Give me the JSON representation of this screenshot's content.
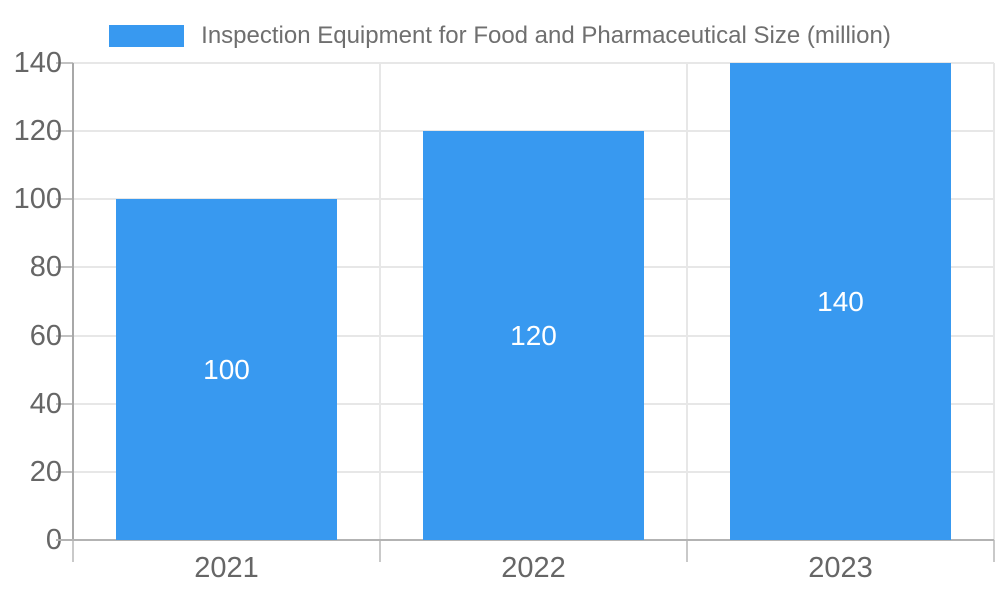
{
  "chart_data": {
    "type": "bar",
    "title": "Inspection Equipment for Food and Pharmaceutical Size (million)",
    "categories": [
      "2021",
      "2022",
      "2023"
    ],
    "series": [
      {
        "name": "Inspection Equipment for Food and Pharmaceutical Size (million)",
        "values": [
          100,
          120,
          140
        ],
        "color": "#3899F0"
      }
    ],
    "data_labels": [
      "100",
      "120",
      "140"
    ],
    "xlabel": "",
    "ylabel": "",
    "ylim": [
      0,
      140
    ],
    "yticks": [
      0,
      20,
      40,
      60,
      80,
      100,
      120,
      140
    ],
    "grid": true,
    "legend_position": "top-center",
    "colors": {
      "bar": "#3899F0",
      "data_label_text": "#ffffff",
      "axis_tick_label": "#666666",
      "legend_text": "#6f6f6f",
      "gridline": "#e7e7e7",
      "y_axis_line": "#a8a8a8",
      "x_axis_line": "#b3b3b3",
      "tick": "#c2c2c2",
      "background": "#ffffff"
    }
  }
}
